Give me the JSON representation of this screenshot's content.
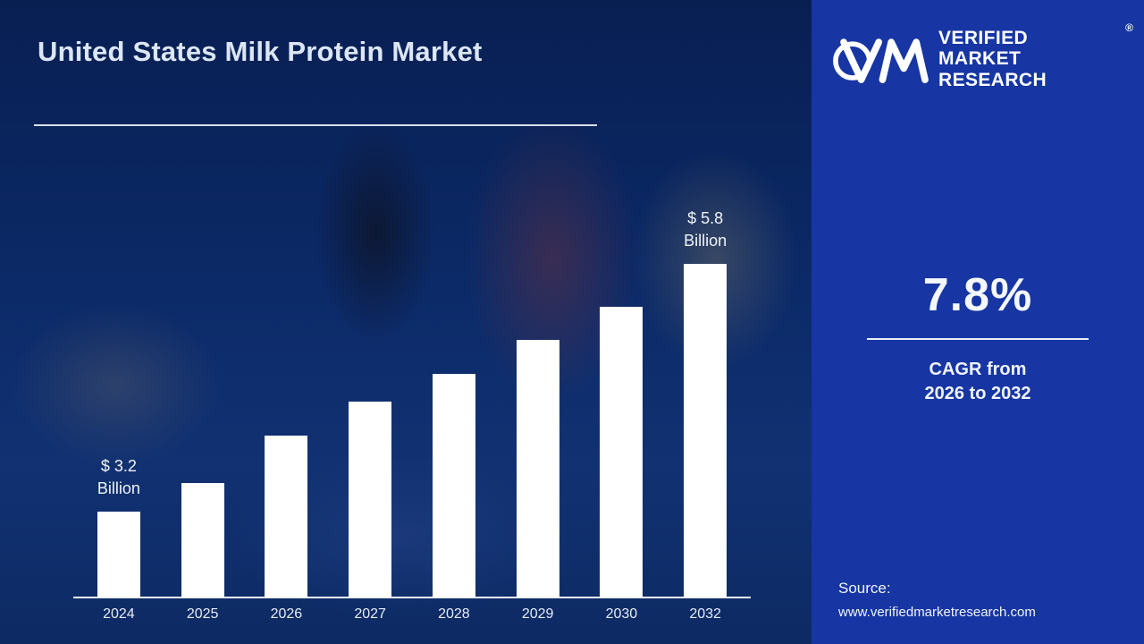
{
  "chart_data": {
    "type": "bar",
    "title": "United States Milk Protein Market",
    "categories": [
      "2024",
      "2025",
      "2026",
      "2027",
      "2028",
      "2029",
      "2030",
      "2032"
    ],
    "values": [
      3.2,
      3.5,
      4.0,
      4.35,
      4.65,
      5.0,
      5.35,
      5.8
    ],
    "unit": "USD Billion",
    "xlabel": "",
    "ylabel": "",
    "ylim": [
      0,
      6
    ],
    "grid": false,
    "legend": "none",
    "bar_color": "#ffffff",
    "annotations": [
      {
        "category": "2024",
        "text_lines": [
          "$ 3.2",
          "Billion"
        ]
      },
      {
        "category": "2032",
        "text_lines": [
          "$ 5.8",
          "Billion"
        ]
      }
    ]
  },
  "sidebar": {
    "logo": {
      "line1": "VERIFIED",
      "line2": "MARKET",
      "line3": "RESEARCH",
      "registered": "®"
    },
    "cagr": {
      "value": "7.8%",
      "caption_line1": "CAGR from",
      "caption_line2": "2026 to 2032"
    },
    "source": {
      "label": "Source:",
      "url": "www.verifiedmarketresearch.com"
    }
  },
  "colors": {
    "left_background": "#0c2a68",
    "right_background": "#1736a3",
    "bar": "#ffffff",
    "text": "#f0f4fa"
  }
}
